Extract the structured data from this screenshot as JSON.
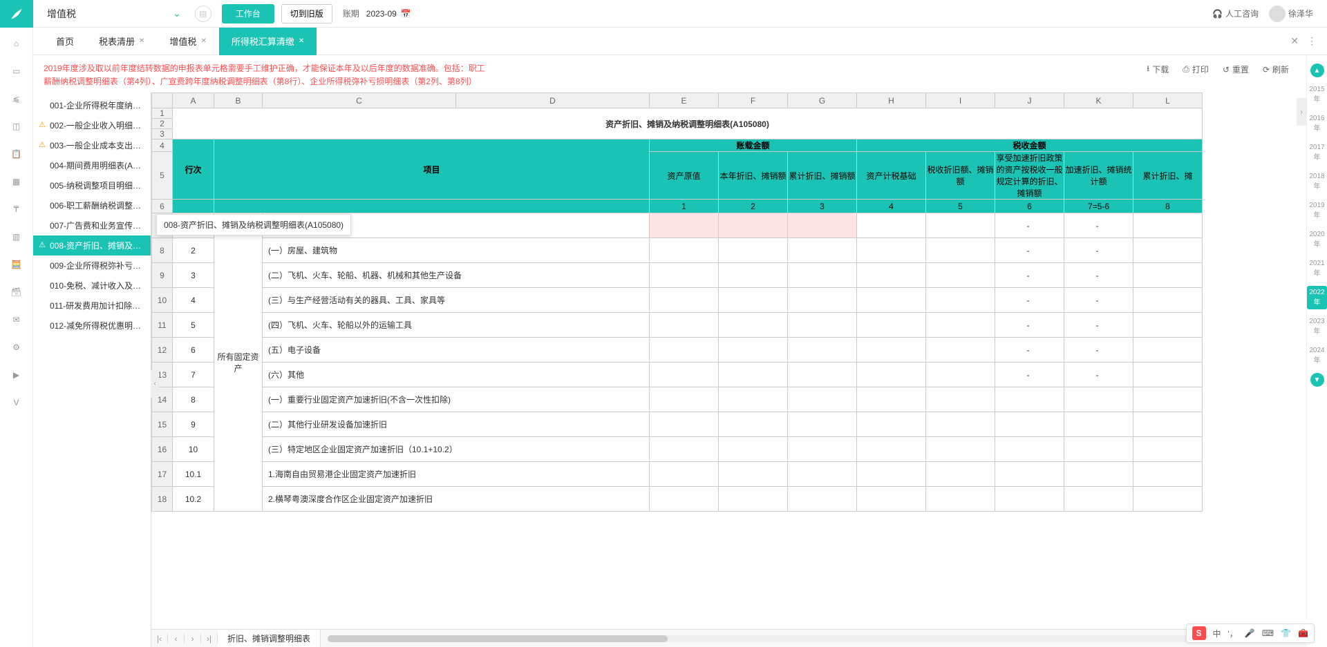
{
  "header": {
    "dropdown": "增值税",
    "workspace_btn": "工作台",
    "old_version_btn": "切到旧版",
    "period_label": "账期",
    "period_value": "2023-09",
    "consult": "人工咨询",
    "username": "徐泽华"
  },
  "tabs": [
    {
      "label": "首页",
      "closable": false
    },
    {
      "label": "税表清册",
      "closable": true
    },
    {
      "label": "增值税",
      "closable": true
    },
    {
      "label": "所得税汇算清缴",
      "closable": true,
      "active": true
    }
  ],
  "warning": "2019年度涉及取以前年度结转数据的申报表单元格需要手工维护正确，才能保证本年及以后年度的数据准确。包括：职工薪酬纳税调整明细表（第4列）、广宣费跨年度纳税调整明细表（第8行）、企业所得税弥补亏损明细表（第2列、第8列）",
  "toolbar": {
    "download": "下载",
    "print": "打印",
    "reset": "重置",
    "refresh": "刷新"
  },
  "form_list": [
    {
      "label": "001-企业所得税年度纳税申..."
    },
    {
      "label": "002-一般企业收入明细表(A1...",
      "warn": true
    },
    {
      "label": "003-一般企业成本支出明细...",
      "warn": true
    },
    {
      "label": "004-期间费用明细表(A1040..."
    },
    {
      "label": "005-纳税调整项目明细表(A1..."
    },
    {
      "label": "006-职工薪酬纳税调整明细..."
    },
    {
      "label": "007-广告费和业务宣传费跨..."
    },
    {
      "label": "008-资产折旧、摊销及纳税...",
      "warn": true,
      "selected": true
    },
    {
      "label": "009-企业所得税弥补亏损明..."
    },
    {
      "label": "010-免税、减计收入及加计..."
    },
    {
      "label": "011-研发费用加计扣除优惠..."
    },
    {
      "label": "012-减免所得税优惠明细表(..."
    }
  ],
  "tooltip": "008-资产折旧、摊销及纳税调整明细表(A105080)",
  "sheet": {
    "title": "资产折旧、摊销及纳税调整明细表(A105080)",
    "cols": [
      "A",
      "B",
      "C",
      "D",
      "E",
      "F",
      "G",
      "H",
      "I",
      "J",
      "K",
      "L"
    ],
    "group1": "账载金额",
    "group2": "税收金额",
    "h_rownum": "行次",
    "h_item": "项目",
    "h_c1": "资产原值",
    "h_c2": "本年折旧、摊销额",
    "h_c3": "累计折旧、摊销额",
    "h_c4": "资产计税基础",
    "h_c5": "税收折旧额、摊销额",
    "h_c6": "享受加速折旧政策的资产按税收一般规定计算的折旧、摊销额",
    "h_c7": "加速折旧、摊销统计额",
    "h_c8": "累计折旧、摊",
    "num_labels": [
      "1",
      "2",
      "3",
      "4",
      "5",
      "6",
      "7=5-6",
      "8"
    ],
    "cat_label": "所有固定资产",
    "rows": [
      {
        "r": "7",
        "n": "",
        "item": ""
      },
      {
        "r": "8",
        "n": "2",
        "item": "(一）房屋、建筑物"
      },
      {
        "r": "9",
        "n": "3",
        "item": "(二）飞机、火车、轮船、机器、机械和其他生产设备"
      },
      {
        "r": "10",
        "n": "4",
        "item": "(三）与生产经营活动有关的器具、工具、家具等"
      },
      {
        "r": "11",
        "n": "5",
        "item": "(四）飞机、火车、轮船以外的运输工具"
      },
      {
        "r": "12",
        "n": "6",
        "item": "(五）电子设备"
      },
      {
        "r": "13",
        "n": "7",
        "item": "(六）其他"
      },
      {
        "r": "14",
        "n": "8",
        "item": "(一）重要行业固定资产加速折旧(不含一次性扣除)"
      },
      {
        "r": "15",
        "n": "9",
        "item": "(二）其他行业研发设备加速折旧"
      },
      {
        "r": "16",
        "n": "10",
        "item": "(三）特定地区企业固定资产加速折旧（10.1+10.2）"
      },
      {
        "r": "17",
        "n": "10.1",
        "item": "1.海南自由贸易港企业固定资产加速折旧"
      },
      {
        "r": "18",
        "n": "10.2",
        "item": "2.横琴粤澳深度合作区企业固定资产加速折旧"
      }
    ],
    "bottom_tab": "折旧、摊销调整明细表"
  },
  "years": [
    "2015年",
    "2016年",
    "2017年",
    "2018年",
    "2019年",
    "2020年",
    "2021年",
    "2022年",
    "2023年",
    "2024年"
  ],
  "year_active": "2022年",
  "ime": {
    "logo": "S",
    "lang": "中"
  }
}
